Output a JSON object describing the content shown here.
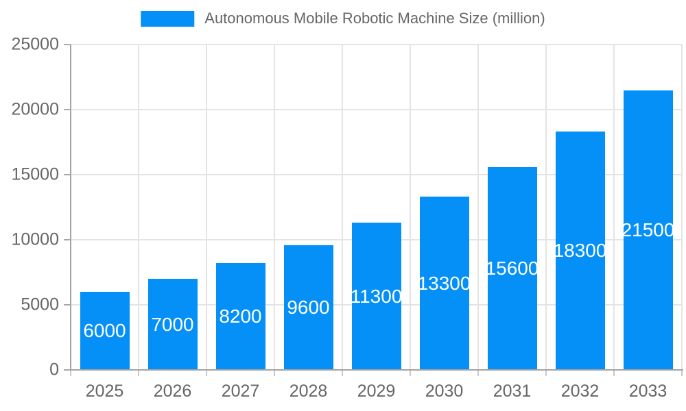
{
  "legend": {
    "label": "Autonomous Mobile Robotic Machine Size (million)"
  },
  "chart_data": {
    "type": "bar",
    "title": "Autonomous Mobile Robotic Machine Size (million)",
    "categories": [
      "2025",
      "2026",
      "2027",
      "2028",
      "2029",
      "2030",
      "2031",
      "2032",
      "2033"
    ],
    "values": [
      6000,
      7000,
      8200,
      9600,
      11300,
      13300,
      15600,
      18300,
      21500
    ],
    "xlabel": "",
    "ylabel": "",
    "ylim": [
      0,
      25000
    ],
    "yticks": [
      0,
      5000,
      10000,
      15000,
      20000,
      25000
    ],
    "grid": true,
    "legend_position": "top-center",
    "value_label_position": "inside-center",
    "colors": {
      "bar": "#0590f8",
      "value_label": "#ffffff",
      "axis_text": "#666666",
      "grid_line": "#e4e4e4",
      "axis_line": "#a3a3a3",
      "background": "#ffffff"
    }
  }
}
